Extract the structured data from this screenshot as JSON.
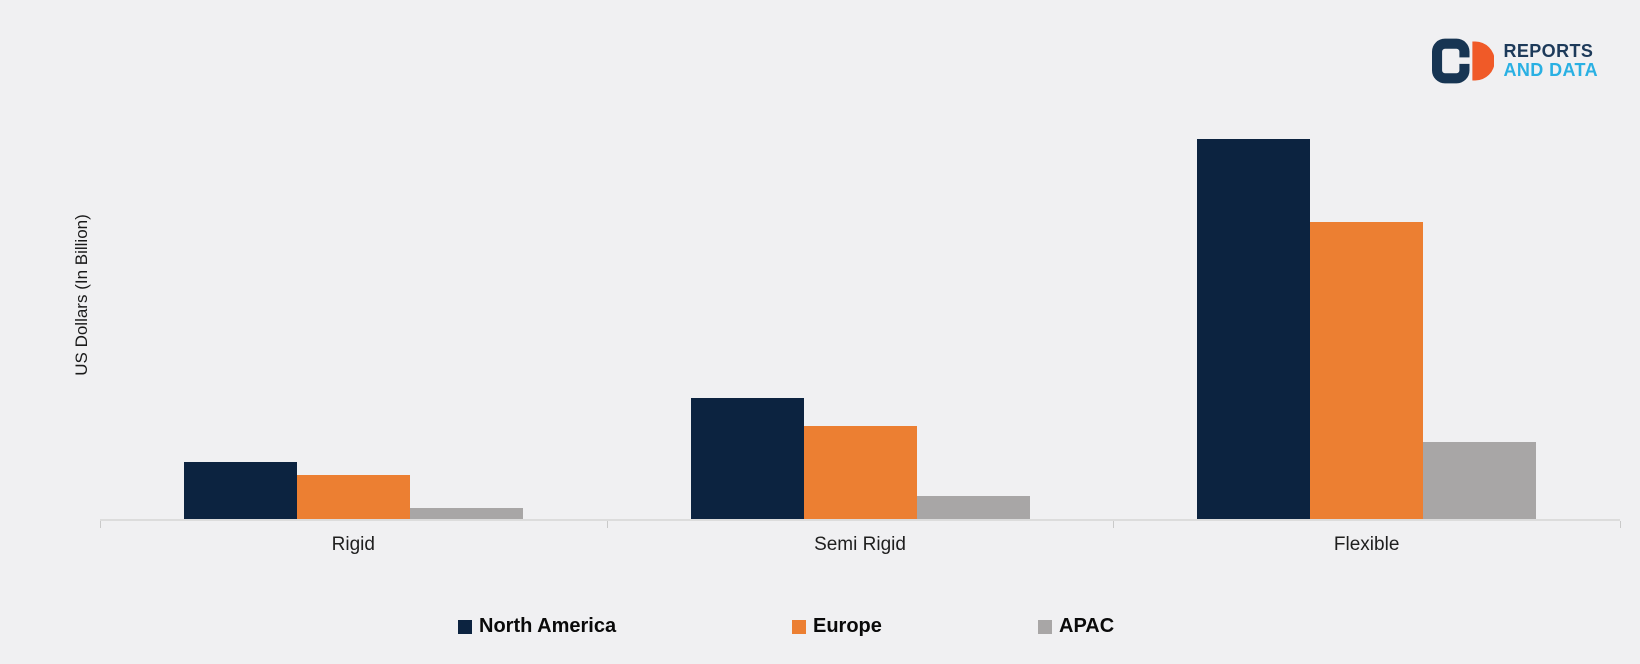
{
  "page": {
    "background_color": "#f0f0f2"
  },
  "logo": {
    "line1": "REPORTS",
    "line2": "AND DATA",
    "line1_color": "#1d3a5a",
    "line2_color": "#29b0e3",
    "mark_r_color": "#173553",
    "mark_d_color": "#f05a28"
  },
  "chart_data": {
    "type": "bar",
    "title": "",
    "xlabel": "",
    "ylabel": "US Dollars  (In Billion)",
    "categories": [
      "Rigid",
      "Semi Rigid",
      "Flexible"
    ],
    "series": [
      {
        "name": "North America",
        "color": "#0c2340",
        "values": [
          5.7,
          12.1,
          38.0
        ]
      },
      {
        "name": "Europe",
        "color": "#ec7f32",
        "values": [
          4.4,
          9.3,
          29.7
        ]
      },
      {
        "name": "APAC",
        "color": "#a8a6a6",
        "values": [
          1.1,
          2.3,
          7.7
        ]
      }
    ],
    "ylim": [
      0,
      42
    ],
    "grid": false,
    "y_tick_labels_shown": false,
    "legend_position": "bottom"
  }
}
